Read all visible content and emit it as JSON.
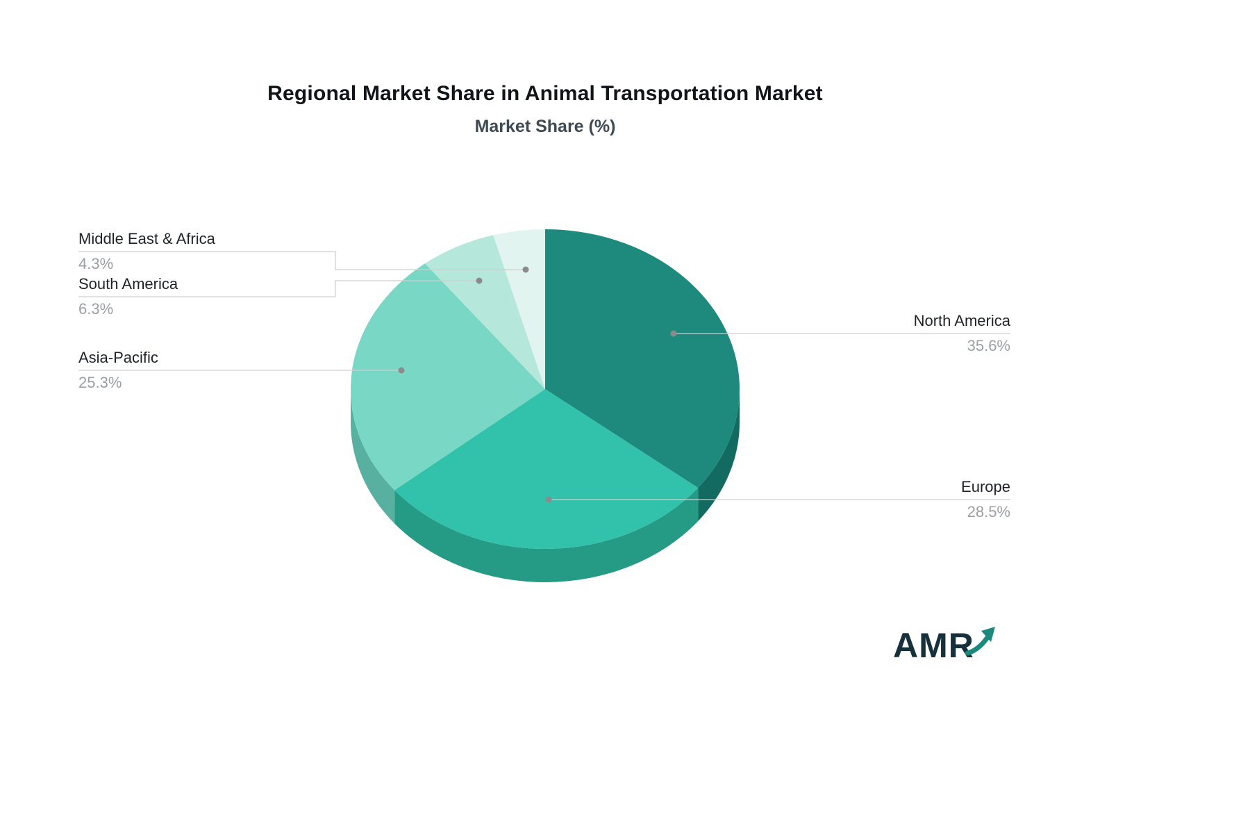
{
  "chart_data": {
    "type": "pie",
    "title": "Regional Market Share in Animal Transportation Market",
    "subtitle": "Market Share (%)",
    "unit": "%",
    "style": "3d-pie",
    "legend_position": "callout-labels",
    "direction": "clockwise",
    "start_angle_deg": 0,
    "slices": [
      {
        "label": "North America",
        "value": 35.6,
        "display": "35.6%",
        "color": "#1e8a7e",
        "side": "#136a60"
      },
      {
        "label": "Europe",
        "value": 28.5,
        "display": "28.5%",
        "color": "#32c1aa",
        "side": "#259b86"
      },
      {
        "label": "Asia-Pacific",
        "value": 25.3,
        "display": "25.3%",
        "color": "#79d8c5",
        "side": "#58b1a0"
      },
      {
        "label": "South America",
        "value": 6.3,
        "display": "6.3%",
        "color": "#b5e8db",
        "side": "#8fc4b7"
      },
      {
        "label": "Middle East & Africa",
        "value": 4.3,
        "display": "4.3%",
        "color": "#e1f4ef",
        "side": "#b7ccc6"
      }
    ],
    "colors": {
      "leader_line": "#cfcfcf",
      "leader_dot": "#8b8b8b",
      "label_text": "#1f2328",
      "percent_text": "#9b9fa3"
    }
  },
  "branding": {
    "logo_text": "AMR",
    "logo_text_color": "#16313b",
    "logo_arrow_color": "#1b8a7d"
  }
}
